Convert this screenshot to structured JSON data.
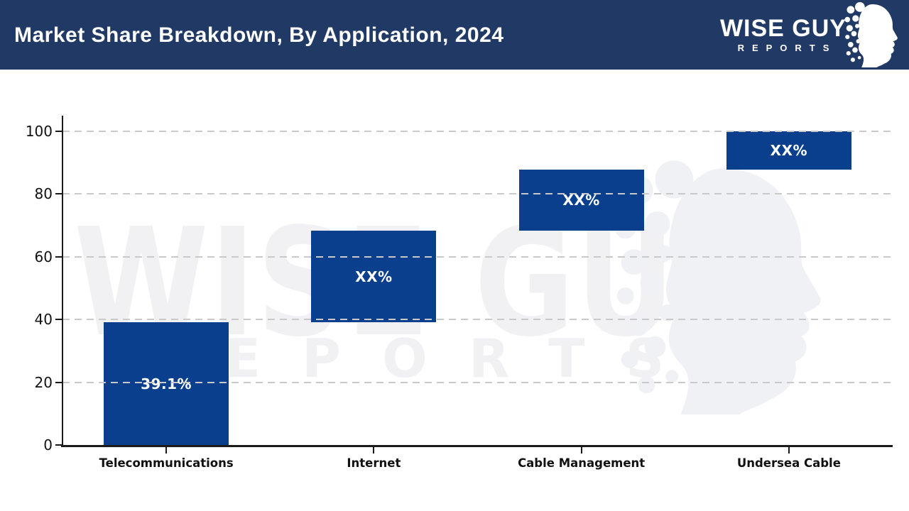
{
  "header": {
    "title": "Market Share Breakdown, By Application, 2024",
    "logo": {
      "line1": "WISE GUY",
      "line2": "REPORTS"
    }
  },
  "watermark": {
    "line1": "WISE GUY",
    "line2": "REPORTS"
  },
  "chart_data": {
    "type": "bar",
    "subtype": "waterfall",
    "title": "Market Share Breakdown, By Application, 2024",
    "categories": [
      "Telecommunications",
      "Internet",
      "Cable Management",
      "Undersea Cable"
    ],
    "series": [
      {
        "name": "Market Share",
        "segments": [
          {
            "category": "Telecommunications",
            "start": 0,
            "end": 39.1,
            "label": "39.1%"
          },
          {
            "category": "Internet",
            "start": 39.1,
            "end": 68.3,
            "label": "XX%"
          },
          {
            "category": "Cable Management",
            "start": 68.3,
            "end": 87.8,
            "label": "XX%"
          },
          {
            "category": "Undersea Cable",
            "start": 87.8,
            "end": 100,
            "label": "XX%"
          }
        ]
      }
    ],
    "xlabel": "",
    "ylabel": "",
    "ylim": [
      0,
      100
    ],
    "yticks": [
      0,
      20,
      40,
      60,
      80,
      100
    ],
    "grid": "horizontal dashed gridlines drawn above bars",
    "legend": "none",
    "bar_color": "#0a3f8e",
    "bar_label_color": "#ffffff",
    "axis_color": "#1a1a1a"
  },
  "colors": {
    "header_bg": "#213965",
    "bar": "#0a3f8e",
    "gridline": "#c9c9c9",
    "watermark": "#f1f1f4",
    "bottom_border": "#d6d6d6"
  }
}
